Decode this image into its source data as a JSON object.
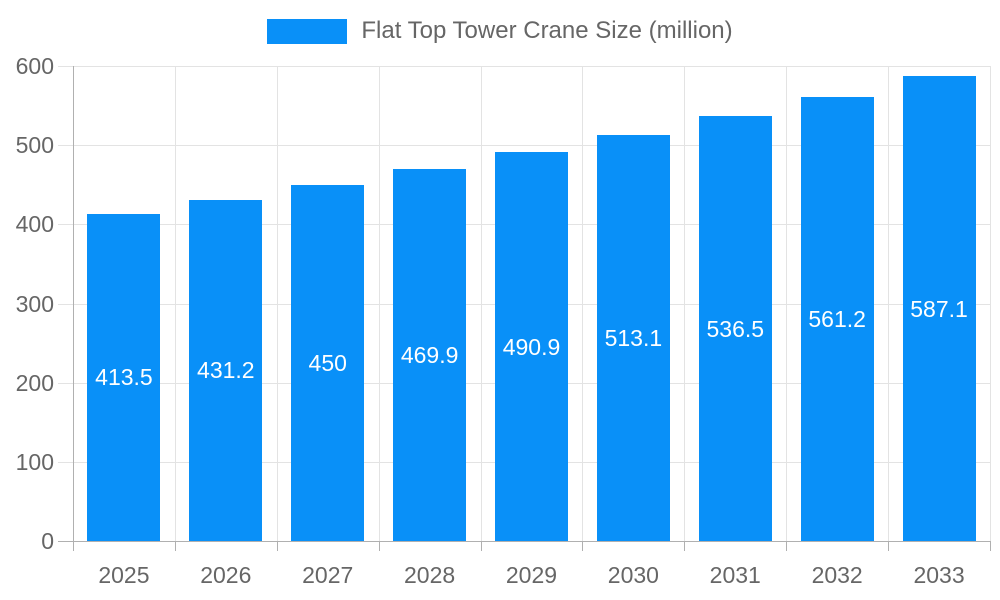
{
  "legend": {
    "label": "Flat Top Tower Crane Size (million)"
  },
  "colors": {
    "bar": "#0990f8",
    "axis_line": "#b0b0b0",
    "gridline": "#e3e3e3",
    "tick_label": "#666666",
    "bar_label": "#ffffff"
  },
  "chart_data": {
    "type": "bar",
    "title": "Flat Top Tower Crane Size (million)",
    "categories": [
      "2025",
      "2026",
      "2027",
      "2028",
      "2029",
      "2030",
      "2031",
      "2032",
      "2033"
    ],
    "values": [
      413.5,
      431.2,
      450,
      469.9,
      490.9,
      513.1,
      536.5,
      561.2,
      587.1
    ],
    "bar_labels": [
      "413.5",
      "431.2",
      "450",
      "469.9",
      "490.9",
      "513.1",
      "536.5",
      "561.2",
      "587.1"
    ],
    "xlabel": "",
    "ylabel": "",
    "ylim": [
      0,
      600
    ],
    "ytick_interval": 100,
    "ytick_labels": [
      "0",
      "100",
      "200",
      "300",
      "400",
      "500",
      "600"
    ],
    "grid": true,
    "legend_position": "top"
  }
}
